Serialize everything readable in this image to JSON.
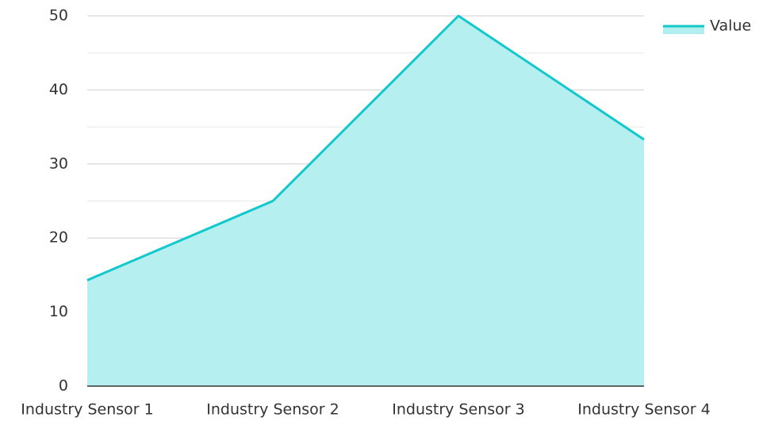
{
  "chart_data": {
    "type": "area",
    "categories": [
      "Industry Sensor 1",
      "Industry Sensor 2",
      "Industry Sensor 3",
      "Industry Sensor 4"
    ],
    "series": [
      {
        "name": "Value",
        "color": "#12c8cc",
        "fill": "#b1eeee",
        "values": [
          14.3,
          25,
          50,
          33.3
        ]
      }
    ],
    "ylim": [
      0,
      50
    ],
    "yticks": [
      0,
      10,
      20,
      30,
      40,
      50
    ],
    "grid": true,
    "legend": "top-right"
  }
}
